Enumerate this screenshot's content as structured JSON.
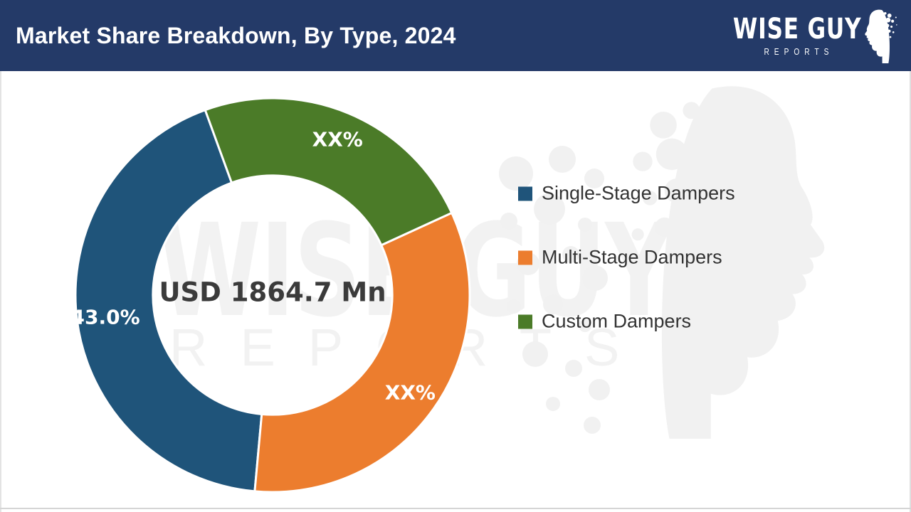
{
  "header": {
    "title": "Market Share Breakdown, By Type, 2024",
    "background_color": "#243a68",
    "logo": {
      "name": "WISE GUY",
      "subtitle": "REPORTS"
    }
  },
  "chart_data": {
    "type": "pie",
    "subtype": "donut",
    "title": "Market Share Breakdown, By Type, 2024",
    "center_label": "USD 1864.7 Mn",
    "start_angle_deg": 110,
    "direction": "counterclockwise",
    "inner_radius_ratio": 0.607,
    "legend_position": "right",
    "segments": [
      {
        "name": "Single-Stage Dampers",
        "value_pct": 43.0,
        "slice_label": "43.0%",
        "color": "#1f547a"
      },
      {
        "name": "Multi-Stage Dampers",
        "value_pct": 33.3,
        "slice_label": "XX%",
        "color": "#ec7d2e"
      },
      {
        "name": "Custom Dampers",
        "value_pct": 23.7,
        "slice_label": "XX%",
        "color": "#4b7b28"
      }
    ]
  },
  "watermark": {
    "line1": "WISE GUY",
    "line2": "REPORTS"
  }
}
